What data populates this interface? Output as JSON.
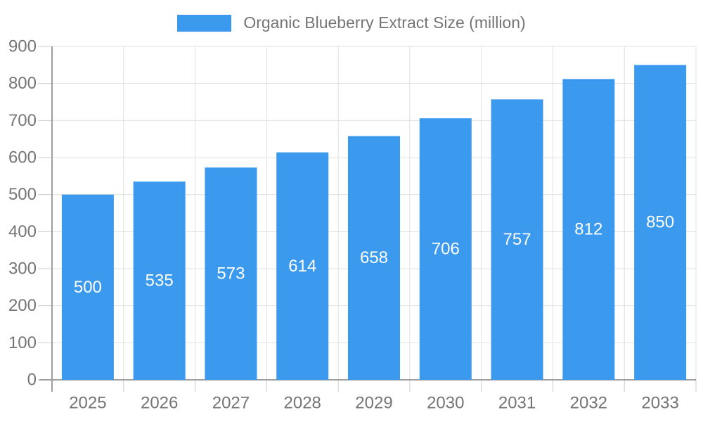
{
  "legend": {
    "label": "Organic Blueberry Extract Size (million)"
  },
  "chart_data": {
    "type": "bar",
    "title": "Organic Blueberry Extract Size (million)",
    "categories": [
      "2025",
      "2026",
      "2027",
      "2028",
      "2029",
      "2030",
      "2031",
      "2032",
      "2033"
    ],
    "values": [
      500,
      535,
      573,
      614,
      658,
      706,
      757,
      812,
      850
    ],
    "xlabel": "",
    "ylabel": "",
    "ylim": [
      0,
      900
    ],
    "yticks": [
      0,
      100,
      200,
      300,
      400,
      500,
      600,
      700,
      800,
      900
    ],
    "grid": true,
    "legend_position": "top-center",
    "bar_color": "#3B99EE",
    "value_label_color": "#ffffff",
    "axis_label_color": "#757575",
    "gridline_color": "#e0e0e0",
    "tick_color": "#cccccc",
    "axis_line_color": "#9e9e9e",
    "background_color": "#ffffff"
  }
}
